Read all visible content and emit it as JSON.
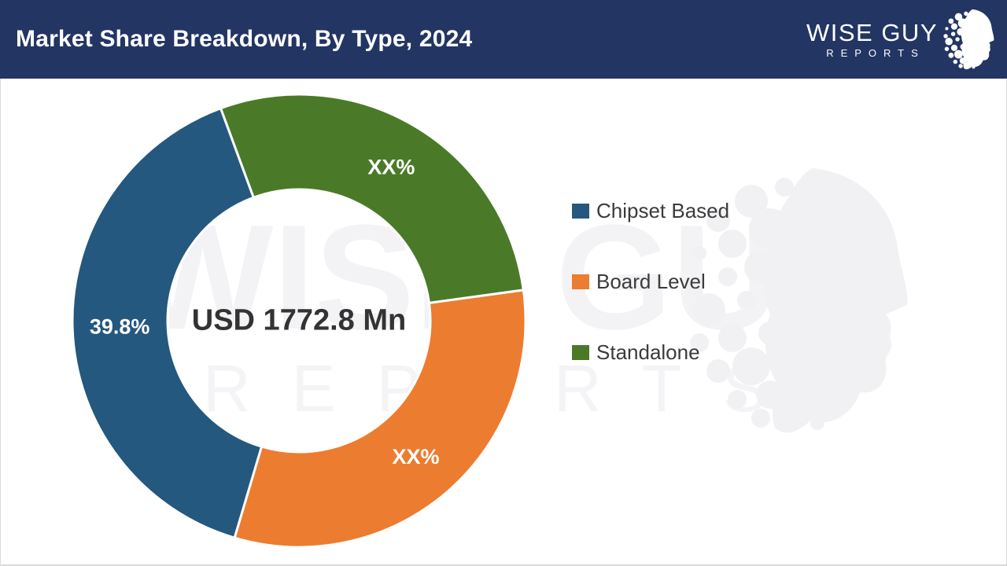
{
  "header": {
    "title": "Market Share Breakdown, By Type, 2024",
    "logo": {
      "line1": "WISE GUY",
      "line2": "REPORTS"
    }
  },
  "watermark": {
    "line1": "WISE GUY",
    "line2": "REPORTS"
  },
  "chart_data": {
    "type": "pie",
    "subtype": "donut",
    "title": "Market Share Breakdown, By Type, 2024",
    "center_label": "USD 1772.8 Mn",
    "legend_position": "right",
    "categories": [
      "Chipset Based",
      "Board Level",
      "Standalone"
    ],
    "series": [
      {
        "name": "Chipset Based",
        "display_label": "39.8%",
        "value_pct": 39.8,
        "color": "#24587E",
        "start_deg": 196.5,
        "end_deg": 339.8
      },
      {
        "name": "Board Level",
        "display_label": "XX%",
        "value_pct": 31.8,
        "color": "#EC7C30",
        "start_deg": 82.2,
        "end_deg": 196.5
      },
      {
        "name": "Standalone",
        "display_label": "XX%",
        "value_pct": 28.4,
        "color": "#4A7A28",
        "start_deg": 339.8,
        "end_deg": 442.2
      }
    ]
  },
  "legend": {
    "items": [
      {
        "label": "Chipset Based",
        "color": "#24587E"
      },
      {
        "label": "Board Level",
        "color": "#EC7C30"
      },
      {
        "label": "Standalone",
        "color": "#4A7A28"
      }
    ]
  },
  "colors": {
    "header_bg": "#233563",
    "blue": "#24587E",
    "orange": "#EC7C30",
    "green": "#4A7A28",
    "watermark": "#F3F3F6",
    "border": "#D9D9D9",
    "center_text": "#333333",
    "legend_text": "#3B3B3B"
  }
}
